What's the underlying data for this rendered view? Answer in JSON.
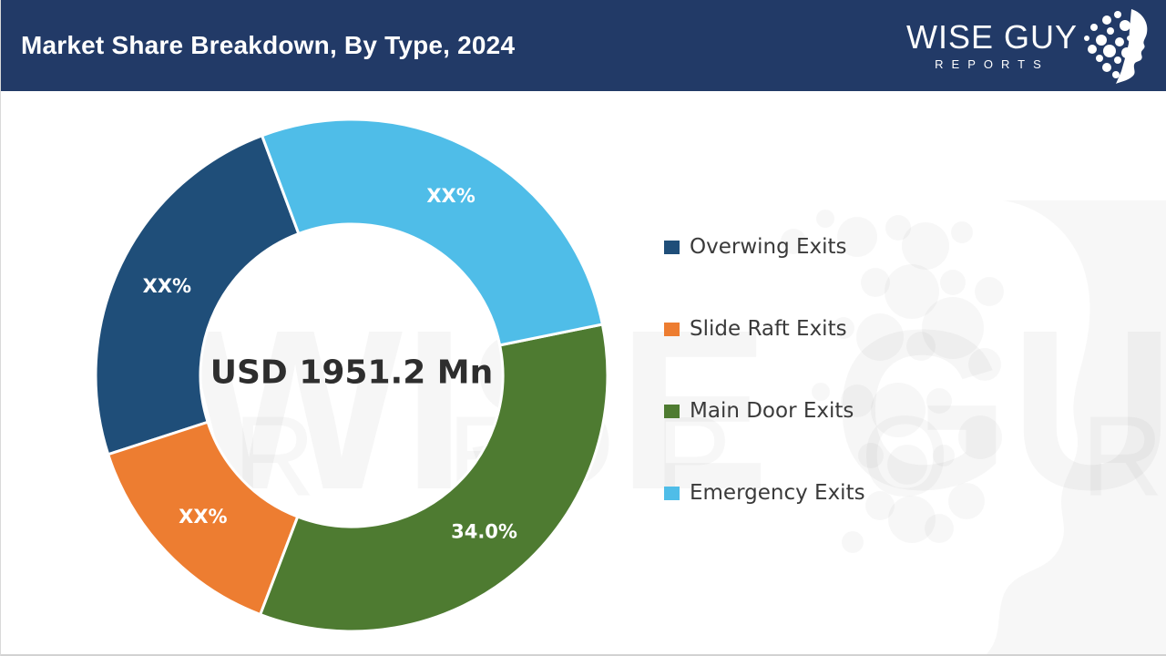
{
  "header": {
    "title": "Market Share Breakdown, By Type, 2024",
    "logo_line1": "WISE GUY",
    "logo_line2": "REPORTS"
  },
  "watermark": {
    "line1": "WISE GUY",
    "line2": "R E P O R T S"
  },
  "chart_data": {
    "type": "pie",
    "variant": "donut",
    "title": "Market Share Breakdown, By Type, 2024",
    "center_label": "USD 1951.2 Mn",
    "start_angle_deg": 110.5,
    "direction": "counterclockwise",
    "legend_position": "right",
    "segments": [
      {
        "name": "Overwing Exits",
        "value_pct": 24.3,
        "label": "XX%",
        "color": "#1F4E79"
      },
      {
        "name": "Slide Raft Exits",
        "value_pct": 14.2,
        "label": "XX%",
        "color": "#ED7D31"
      },
      {
        "name": "Main Door Exits",
        "value_pct": 34.0,
        "label": "34.0%",
        "color": "#4E7B31"
      },
      {
        "name": "Emergency Exits",
        "value_pct": 27.5,
        "label": "XX%",
        "color": "#4FBDE8"
      }
    ]
  }
}
